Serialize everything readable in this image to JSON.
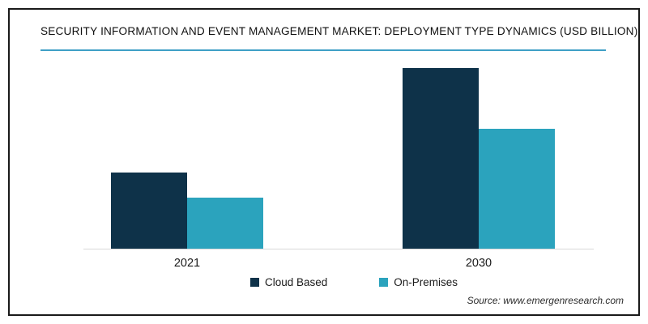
{
  "title": "SECURITY INFORMATION AND EVENT MANAGEMENT MARKET: DEPLOYMENT TYPE DYNAMICS (USD BILLION)",
  "source": "Source: www.emergenresearch.com",
  "colors": {
    "accent_underline": "#3f9fc6",
    "axis_line": "#d9d9d9",
    "frame_border": "#1a1a1a",
    "cloud_based": "#0e3249",
    "on_premises": "#2ba3bd"
  },
  "chart_data": {
    "type": "bar",
    "title": "SECURITY INFORMATION AND EVENT MANAGEMENT MARKET: DEPLOYMENT TYPE DYNAMICS (USD BILLION)",
    "categories": [
      "2021",
      "2030"
    ],
    "series": [
      {
        "name": "Cloud Based",
        "color": "#0e3249",
        "values": [
          3.0,
          7.1
        ]
      },
      {
        "name": "On-Premises",
        "color": "#2ba3bd",
        "values": [
          2.0,
          4.7
        ]
      }
    ],
    "xlabel": "",
    "ylabel": "",
    "ylim": [
      0,
      7.5
    ],
    "grid": false,
    "y_axis_labels_shown": false,
    "legend_position": "bottom"
  }
}
